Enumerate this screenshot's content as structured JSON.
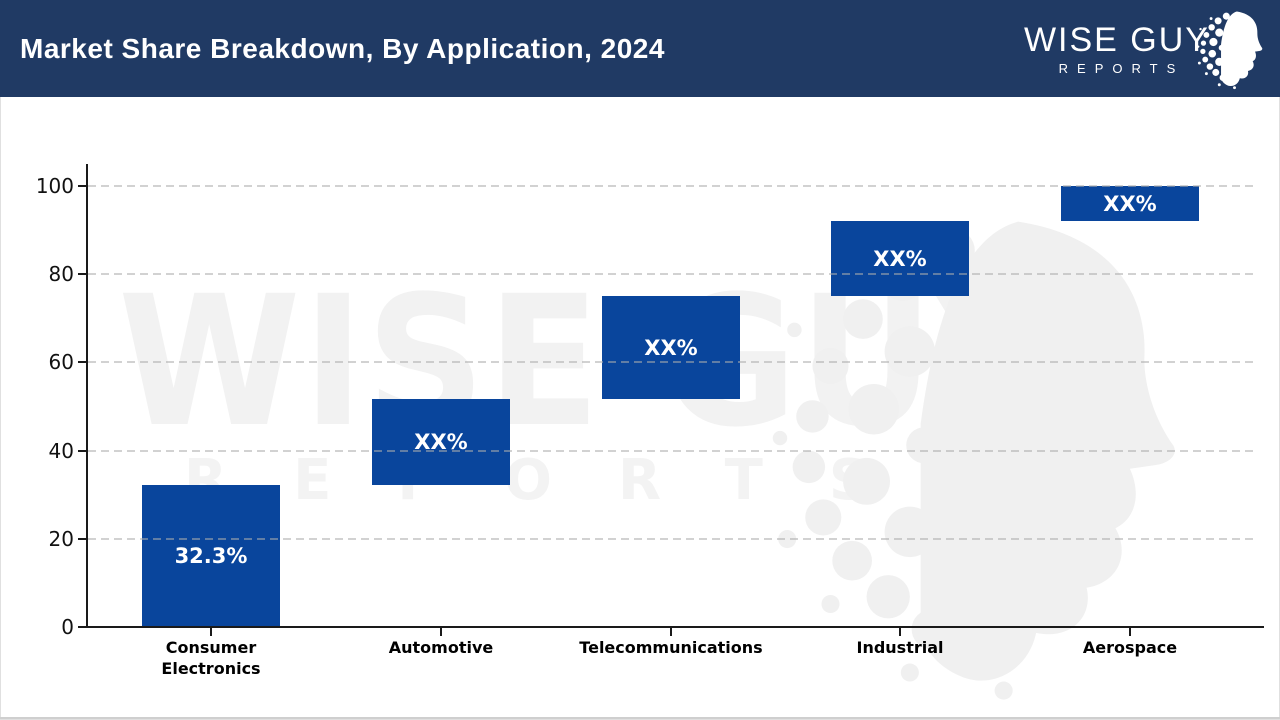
{
  "header": {
    "title": "Market Share Breakdown, By Application, 2024",
    "bg_color": "#203a64",
    "logo": {
      "wordmark": "WISE GUY",
      "subtext": "REPORTS"
    }
  },
  "watermark": {
    "line1": "WISE GUY",
    "line2": "REPORTS"
  },
  "chart_data": {
    "type": "bar",
    "subtype": "waterfall",
    "title": "Market Share Breakdown, By Application, 2024",
    "categories": [
      "Consumer\nElectronics",
      "Automotive",
      "Telecommunications",
      "Industrial",
      "Aerospace"
    ],
    "series": [
      {
        "name": "Market share (%)",
        "segments": [
          {
            "category": "Consumer Electronics",
            "from": 0,
            "to": 32.3,
            "label": "32.3%"
          },
          {
            "category": "Automotive",
            "from": 32.3,
            "to": 51.6,
            "label": "XX%"
          },
          {
            "category": "Telecommunications",
            "from": 51.6,
            "to": 75.0,
            "label": "XX%"
          },
          {
            "category": "Industrial",
            "from": 75.0,
            "to": 92.0,
            "label": "XX%"
          },
          {
            "category": "Aerospace",
            "from": 92.0,
            "to": 100.0,
            "label": "XX%"
          }
        ]
      }
    ],
    "ylim": [
      0,
      105
    ],
    "yticks": [
      0,
      20,
      40,
      60,
      80,
      100
    ],
    "grid": "horizontal-dashed",
    "legend": "none",
    "bar_color": "#09459c",
    "value_label_color": "#ffffff"
  }
}
